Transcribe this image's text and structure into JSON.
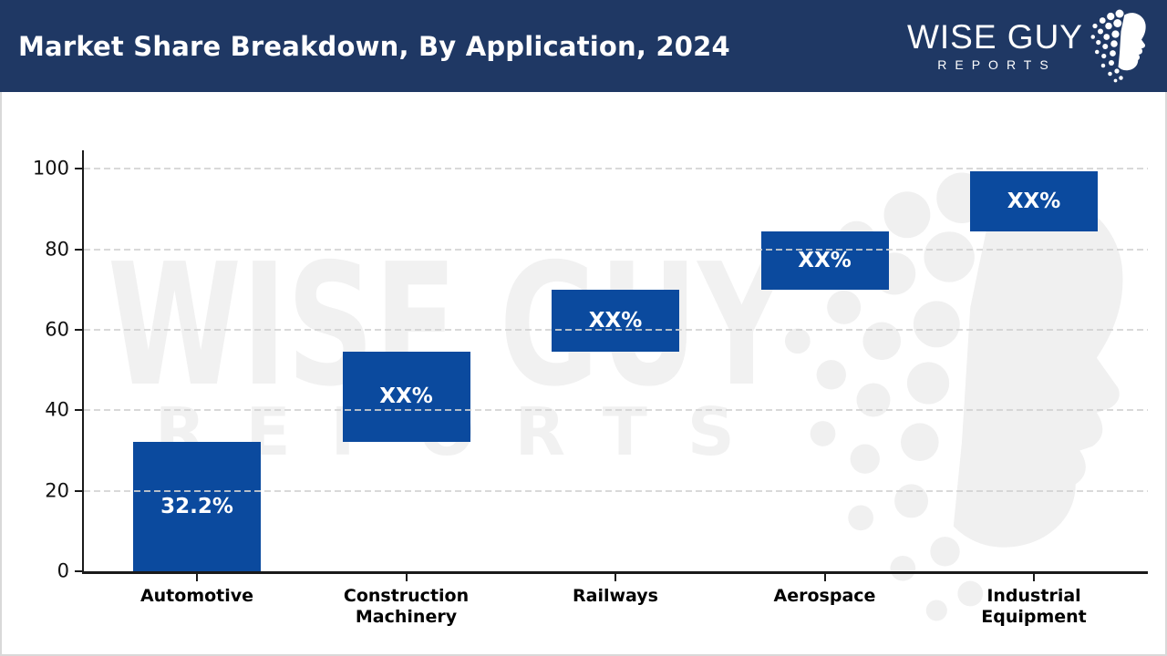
{
  "header": {
    "title": "Market Share Breakdown, By Application, 2024",
    "bg_color": "#1f3864",
    "logo": {
      "wordmark": "WISE GUY",
      "subtext": "REPORTS"
    }
  },
  "watermark": {
    "wordmark": "WISE GUY",
    "subtext": "REPORTS"
  },
  "chart_data": {
    "type": "bar",
    "subtype": "waterfall",
    "title": "Market Share Breakdown, By Application, 2024",
    "xlabel": "",
    "ylabel": "",
    "ylim": [
      0,
      104.6
    ],
    "y_ticks": [
      0,
      20,
      40,
      60,
      80,
      100
    ],
    "grid": "horizontal dashed gridlines drawn over bars",
    "legend": "none",
    "bar_color": "#0b4a9e",
    "value_label_color": "#ffffff",
    "categories": [
      "Automotive",
      "Construction Machinery",
      "Railways",
      "Aerospace",
      "Industrial Equipment"
    ],
    "bars": [
      {
        "category": "Automotive",
        "label_lines": [
          "Automotive"
        ],
        "start": 0,
        "end": 32.2,
        "value": 32.2,
        "value_label": "32.2%"
      },
      {
        "category": "Construction Machinery",
        "label_lines": [
          "Construction",
          "Machinery"
        ],
        "start": 32.2,
        "end": 54.6,
        "value": 22.4,
        "value_label": "XX%"
      },
      {
        "category": "Railways",
        "label_lines": [
          "Railways"
        ],
        "start": 54.6,
        "end": 69.9,
        "value": 15.3,
        "value_label": "XX%"
      },
      {
        "category": "Aerospace",
        "label_lines": [
          "Aerospace"
        ],
        "start": 69.9,
        "end": 84.4,
        "value": 14.5,
        "value_label": "XX%"
      },
      {
        "category": "Industrial Equipment",
        "label_lines": [
          "Industrial",
          "Equipment"
        ],
        "start": 84.4,
        "end": 99.3,
        "value": 14.9,
        "value_label": "XX%"
      }
    ]
  }
}
